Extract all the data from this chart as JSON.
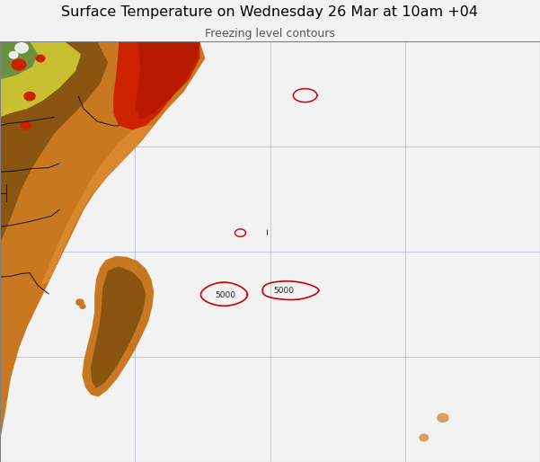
{
  "title": "Surface Temperature on Wednesday 26 Mar at 10am +04",
  "subtitle": "Freezing level contours",
  "title_fontsize": 11.5,
  "subtitle_fontsize": 9,
  "fig_width": 6.01,
  "fig_height": 5.14,
  "dpi": 100,
  "header_bg": "#f2f2f2",
  "ocean_color": "#c5cfe0",
  "grid_color": "#9aabcc",
  "contour_color": "#cc0000",
  "contour_label": "5000",
  "lc_brown_mid": "#c87820",
  "lc_brown_dark": "#8a5510",
  "lc_orange": "#d98830",
  "lc_red": "#cc2200",
  "lc_yellow": "#c8c030",
  "lc_green": "#6a9040",
  "lc_tan": "#d4a060"
}
